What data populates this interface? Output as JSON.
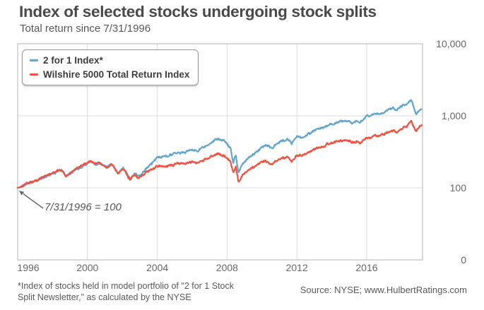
{
  "title": "Index of selected stocks undergoing stock splits",
  "subtitle": "Total return since 7/31/1996",
  "legend": {
    "items": [
      {
        "label": "2 for 1 Index*",
        "color": "#62a6cc"
      },
      {
        "label": "Wilshire 5000 Total Return Index",
        "color": "#ef5340"
      }
    ]
  },
  "annotation": {
    "text": "7/31/1996 = 100"
  },
  "footnote": {
    "line1": "*Index of stocks held in model portfolio of \"2 for 1 Stock",
    "line2": "Split Newsletter,\" as calculated by the NYSE"
  },
  "source": "Source: NYSE; www.HulbertRatings.com",
  "chart_data": {
    "type": "line",
    "title": "Index of selected stocks undergoing stock splits",
    "subtitle": "Total return since 7/31/1996",
    "x_axis": {
      "ticks": [
        1996,
        2000,
        2004,
        2008,
        2012,
        2016
      ],
      "range": [
        1996,
        2019.2
      ],
      "grid": true
    },
    "y_axis": {
      "scale": "log",
      "tick_labels": [
        "10,000",
        "1,000",
        "100",
        "0"
      ],
      "tick_values": [
        10000,
        1000,
        100,
        0
      ],
      "range": [
        100,
        10000
      ],
      "grid": true,
      "label_side": "right"
    },
    "baseline_note": "7/31/1996 = 100",
    "series": [
      {
        "name": "2 for 1 Index*",
        "color": "#62a6cc",
        "points": [
          [
            1996.0,
            100
          ],
          [
            1996.5,
            112
          ],
          [
            1997.0,
            124
          ],
          [
            1997.5,
            140
          ],
          [
            1998.0,
            158
          ],
          [
            1998.55,
            175
          ],
          [
            1998.75,
            142
          ],
          [
            1999.1,
            168
          ],
          [
            1999.4,
            183
          ],
          [
            1999.8,
            205
          ],
          [
            2000.2,
            228
          ],
          [
            2000.45,
            210
          ],
          [
            2000.7,
            220
          ],
          [
            2001.1,
            196
          ],
          [
            2001.4,
            210
          ],
          [
            2001.75,
            168
          ],
          [
            2002.05,
            192
          ],
          [
            2002.45,
            138
          ],
          [
            2002.7,
            158
          ],
          [
            2002.95,
            146
          ],
          [
            2003.5,
            205
          ],
          [
            2004.0,
            262
          ],
          [
            2004.5,
            270
          ],
          [
            2005.0,
            292
          ],
          [
            2005.5,
            312
          ],
          [
            2006.0,
            342
          ],
          [
            2006.35,
            322
          ],
          [
            2007.0,
            420
          ],
          [
            2007.5,
            478
          ],
          [
            2007.8,
            452
          ],
          [
            2008.0,
            408
          ],
          [
            2008.2,
            350
          ],
          [
            2008.35,
            225
          ],
          [
            2008.5,
            285
          ],
          [
            2008.65,
            160
          ],
          [
            2008.9,
            210
          ],
          [
            2009.2,
            258
          ],
          [
            2009.6,
            305
          ],
          [
            2010.2,
            395
          ],
          [
            2010.55,
            355
          ],
          [
            2011.0,
            435
          ],
          [
            2011.45,
            465
          ],
          [
            2011.7,
            400
          ],
          [
            2012.0,
            520
          ],
          [
            2012.3,
            500
          ],
          [
            2013.0,
            625
          ],
          [
            2013.5,
            690
          ],
          [
            2014.0,
            760
          ],
          [
            2014.5,
            815
          ],
          [
            2015.0,
            855
          ],
          [
            2015.15,
            790
          ],
          [
            2015.45,
            850
          ],
          [
            2015.6,
            805
          ],
          [
            2016.0,
            975
          ],
          [
            2016.5,
            1040
          ],
          [
            2017.0,
            1130
          ],
          [
            2017.5,
            1270
          ],
          [
            2017.65,
            1210
          ],
          [
            2018.0,
            1360
          ],
          [
            2018.3,
            1470
          ],
          [
            2018.55,
            1620
          ],
          [
            2018.7,
            1340
          ],
          [
            2018.85,
            1080
          ],
          [
            2019.0,
            1210
          ],
          [
            2019.15,
            1240
          ]
        ]
      },
      {
        "name": "Wilshire 5000 Total Return Index",
        "color": "#ef5340",
        "points": [
          [
            1996.0,
            100
          ],
          [
            1996.5,
            113
          ],
          [
            1997.0,
            126
          ],
          [
            1997.5,
            143
          ],
          [
            1998.0,
            160
          ],
          [
            1998.55,
            178
          ],
          [
            1998.75,
            145
          ],
          [
            1999.1,
            165
          ],
          [
            1999.4,
            185
          ],
          [
            1999.8,
            212
          ],
          [
            2000.2,
            235
          ],
          [
            2000.45,
            215
          ],
          [
            2000.7,
            222
          ],
          [
            2001.1,
            194
          ],
          [
            2001.4,
            205
          ],
          [
            2001.75,
            160
          ],
          [
            2002.05,
            185
          ],
          [
            2002.45,
            126
          ],
          [
            2002.7,
            148
          ],
          [
            2002.95,
            135
          ],
          [
            2003.5,
            172
          ],
          [
            2004.0,
            192
          ],
          [
            2004.5,
            196
          ],
          [
            2005.0,
            208
          ],
          [
            2005.5,
            218
          ],
          [
            2006.0,
            232
          ],
          [
            2006.35,
            222
          ],
          [
            2007.0,
            262
          ],
          [
            2007.5,
            295
          ],
          [
            2007.8,
            280
          ],
          [
            2008.0,
            255
          ],
          [
            2008.2,
            232
          ],
          [
            2008.35,
            165
          ],
          [
            2008.5,
            195
          ],
          [
            2008.65,
            122
          ],
          [
            2008.9,
            152
          ],
          [
            2009.2,
            178
          ],
          [
            2009.6,
            200
          ],
          [
            2010.2,
            235
          ],
          [
            2010.55,
            216
          ],
          [
            2011.0,
            252
          ],
          [
            2011.45,
            265
          ],
          [
            2011.7,
            232
          ],
          [
            2012.0,
            292
          ],
          [
            2012.3,
            282
          ],
          [
            2013.0,
            345
          ],
          [
            2013.5,
            380
          ],
          [
            2014.0,
            418
          ],
          [
            2014.5,
            442
          ],
          [
            2015.0,
            458
          ],
          [
            2015.15,
            418
          ],
          [
            2015.45,
            448
          ],
          [
            2015.6,
            422
          ],
          [
            2016.0,
            485
          ],
          [
            2016.5,
            515
          ],
          [
            2017.0,
            558
          ],
          [
            2017.5,
            615
          ],
          [
            2017.65,
            588
          ],
          [
            2018.0,
            658
          ],
          [
            2018.3,
            725
          ],
          [
            2018.55,
            845
          ],
          [
            2018.7,
            705
          ],
          [
            2018.85,
            618
          ],
          [
            2019.0,
            712
          ],
          [
            2019.15,
            738
          ]
        ]
      }
    ]
  }
}
